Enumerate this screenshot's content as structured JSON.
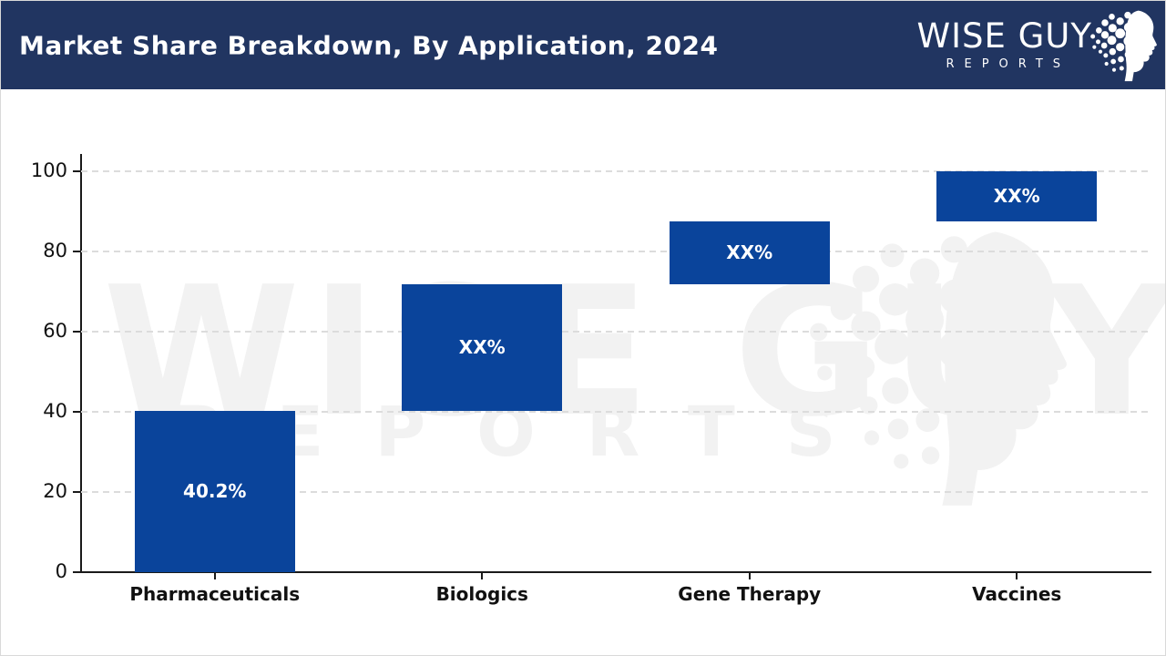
{
  "header": {
    "title": "Market Share Breakdown, By Application, 2024",
    "brand": {
      "name": "WISE GUY",
      "subname": "REPORTS"
    }
  },
  "watermark": {
    "line1": "WISE GUY",
    "line2": "REPORTS"
  },
  "chart_data": {
    "type": "bar",
    "subtype": "waterfall",
    "title": "Market Share Breakdown, By Application, 2024",
    "categories": [
      "Pharmaceuticals",
      "Biologics",
      "Gene Therapy",
      "Vaccines"
    ],
    "segments": [
      {
        "category": "Pharmaceuticals",
        "start": 0,
        "end": 40.2,
        "label": "40.2%"
      },
      {
        "category": "Biologics",
        "start": 40.2,
        "end": 71.8,
        "label": "XX%"
      },
      {
        "category": "Gene Therapy",
        "start": 71.8,
        "end": 87.4,
        "label": "XX%"
      },
      {
        "category": "Vaccines",
        "start": 87.4,
        "end": 100,
        "label": "XX%"
      }
    ],
    "yticks": [
      0,
      20,
      40,
      60,
      80,
      100
    ],
    "ylim": [
      0,
      104
    ],
    "xlabel": "",
    "ylabel": "",
    "grid": "dashed-horizontal",
    "legend": "none",
    "bar_color": "#0a449b",
    "bar_label_color": "#ffffff"
  },
  "colors": {
    "header_bg": "#213561",
    "title_text": "#ffffff",
    "axis_text": "#111111",
    "gridline": "#dcdcdc",
    "watermark": "#f2f2f2",
    "frame_border": "#d9d9d9"
  }
}
